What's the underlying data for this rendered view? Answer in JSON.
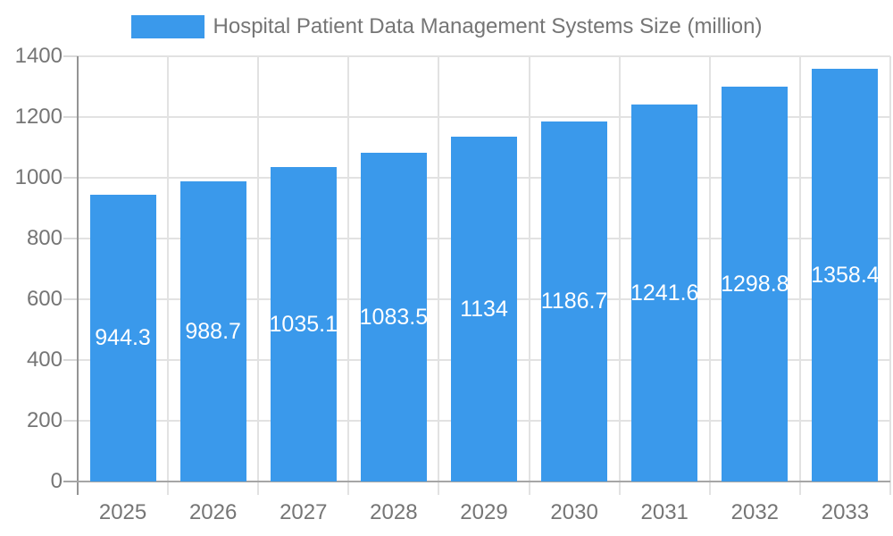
{
  "chart_data": {
    "type": "bar",
    "title": "Hospital Patient Data Management Systems Size (million)",
    "categories": [
      "2025",
      "2026",
      "2027",
      "2028",
      "2029",
      "2030",
      "2031",
      "2032",
      "2033"
    ],
    "values": [
      944.3,
      988.7,
      1035.1,
      1083.5,
      1134,
      1186.7,
      1241.6,
      1298.8,
      1358.4
    ],
    "series": [
      {
        "name": "Hospital Patient Data Management Systems Size (million)",
        "values": [
          944.3,
          988.7,
          1035.1,
          1083.5,
          1134,
          1186.7,
          1241.6,
          1298.8,
          1358.4
        ]
      }
    ],
    "xlabel": "",
    "ylabel": "",
    "ylim": [
      0,
      1400
    ],
    "yticks": [
      0,
      200,
      400,
      600,
      800,
      1000,
      1200,
      1400
    ],
    "grid": "horizontal-and-vertical",
    "legend_position": "top-center",
    "value_labels": "inside-center",
    "colors": {
      "bar": "#3A99EB",
      "value_label": "#FFFFFF",
      "axis_text": "#757575",
      "grid_line": "#E2E2E2",
      "tick_line": "#D9D9D9",
      "axis_line": "#949494",
      "baseline": "#A6A6A6",
      "background": "#FFFFFF"
    }
  }
}
